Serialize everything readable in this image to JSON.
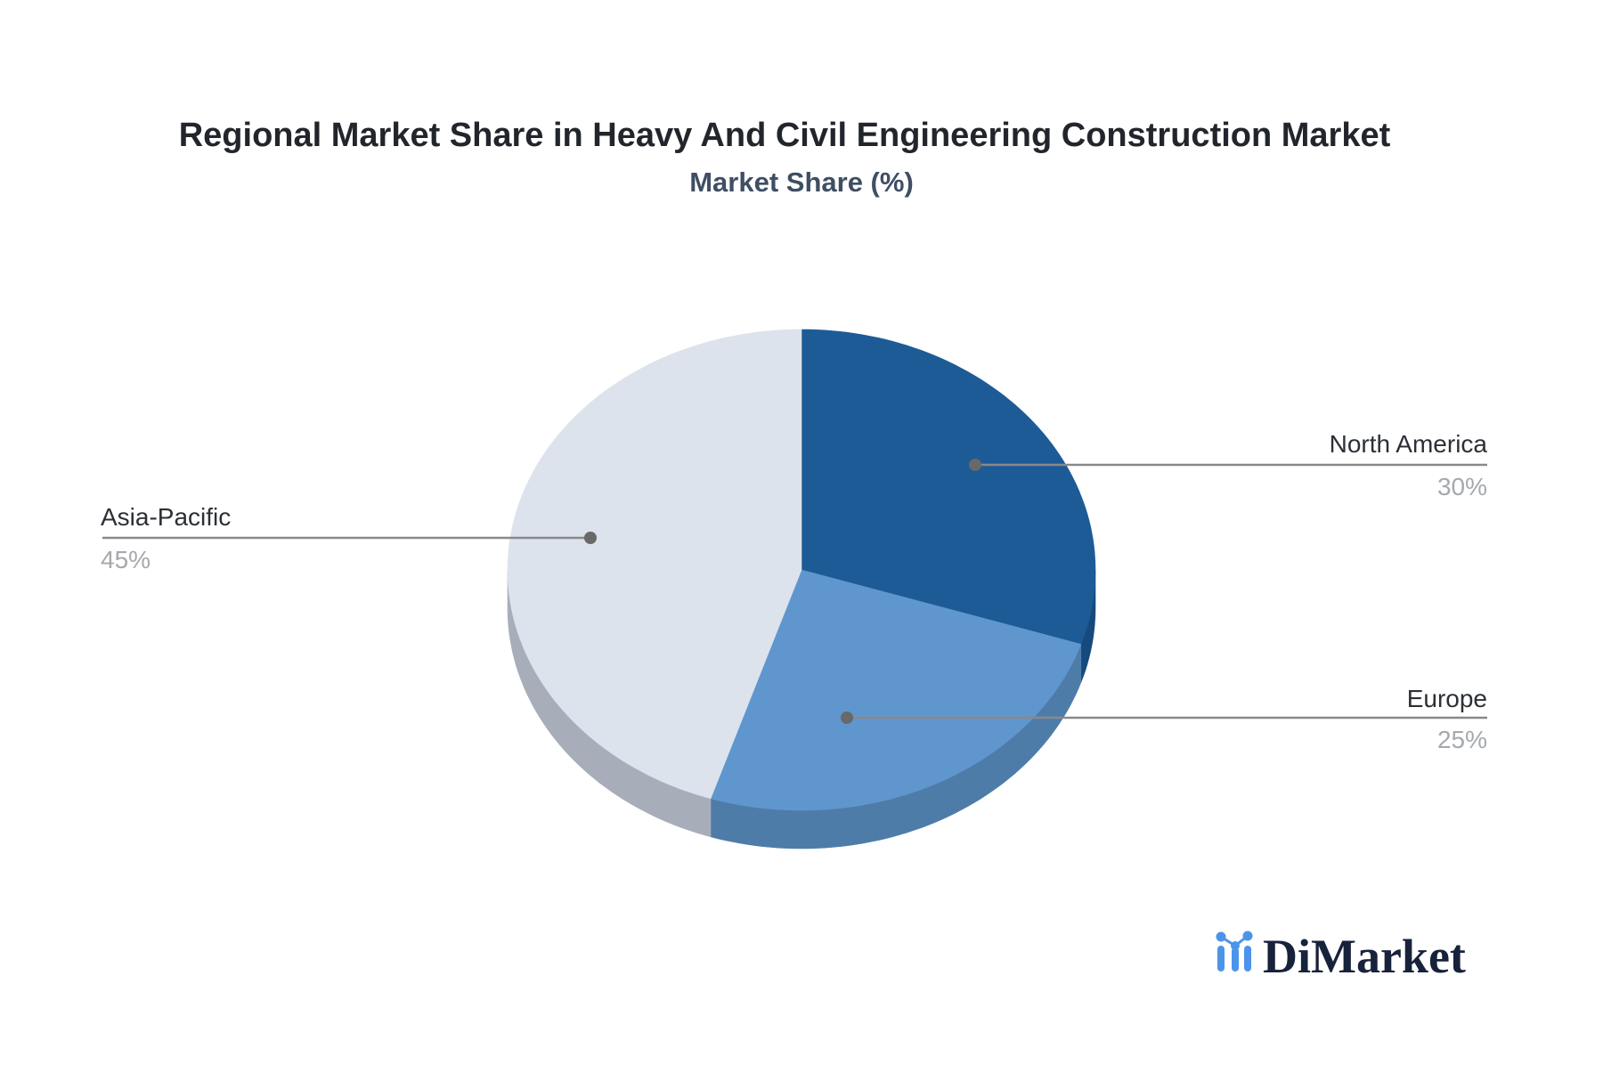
{
  "title": "Regional Market Share in Heavy And Civil Engineering Construction Market",
  "subtitle": "Market Share (%)",
  "chart_data": {
    "type": "pie",
    "style": "3d",
    "title": "Regional Market Share in Heavy And Civil Engineering Construction Market",
    "subtitle": "Market Share (%)",
    "unit": "%",
    "start_angle_deg": 0,
    "direction": "clockwise",
    "legend": "none",
    "label_style": "leader-lines",
    "background": "#ffffff",
    "slices": [
      {
        "label": "North America",
        "value": 30,
        "display_value": "30%",
        "color": "#1d5b96",
        "side_color": "#174a7c"
      },
      {
        "label": "Europe",
        "value": 25,
        "display_value": "25%",
        "color": "#6096ce",
        "side_color": "#4e7ca9"
      },
      {
        "label": "Asia-Pacific",
        "value": 45,
        "display_value": "45%",
        "color": "#dce3ec",
        "side_color": "#a7aeb9"
      }
    ],
    "leader_line_color": "#898989",
    "leader_dot_color": "#696969",
    "label_name_color": "#2c3036",
    "label_value_color": "#a5a9ae"
  },
  "logo": {
    "text": "DiMarket",
    "icon": "bar-chart-logo-icon",
    "icon_color": "#4b94e9",
    "text_color": "#17223b"
  }
}
